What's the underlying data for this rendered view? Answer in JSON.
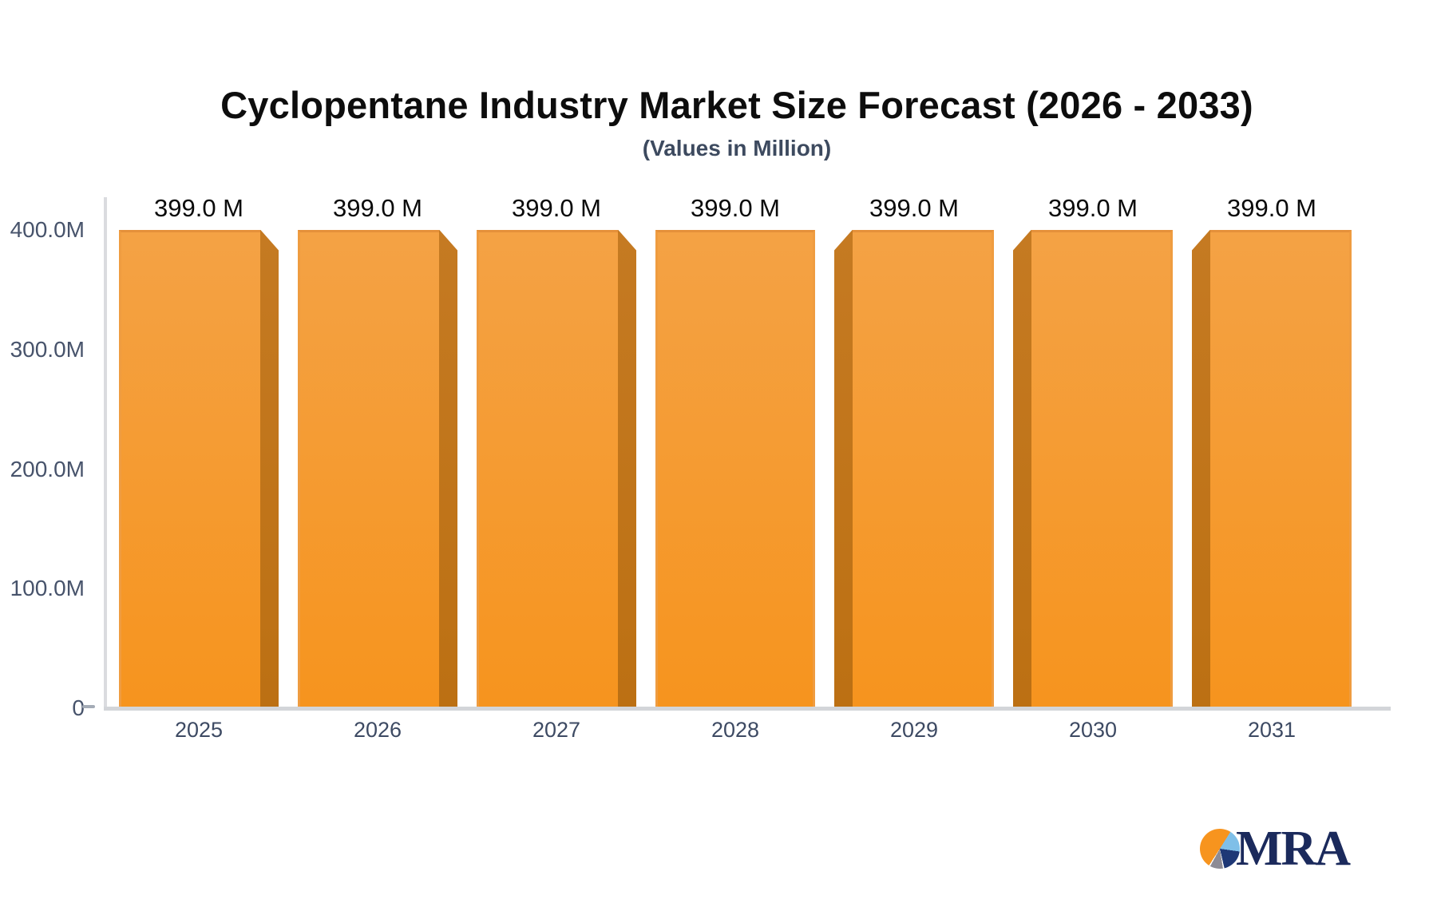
{
  "chart_data": {
    "type": "bar",
    "title": "Cyclopentane Industry Market Size Forecast (2026 - 2033)",
    "subtitle": "(Values in Million)",
    "categories": [
      "2025",
      "2026",
      "2027",
      "2028",
      "2029",
      "2030",
      "2031"
    ],
    "values": [
      399.0,
      399.0,
      399.0,
      399.0,
      399.0,
      399.0,
      399.0
    ],
    "bar_labels": [
      "399.0 M",
      "399.0 M",
      "399.0 M",
      "399.0 M",
      "399.0 M",
      "399.0 M",
      "399.0 M"
    ],
    "unit": "Million",
    "ylim": [
      0,
      400
    ],
    "y_ticks": [
      "400.0M",
      "300.0M",
      "200.0M",
      "100.0M",
      "0"
    ],
    "xlabel": "",
    "ylabel": "",
    "grid": "off",
    "legend": "none",
    "colors": {
      "bar_face_top": "#F4A245",
      "bar_face_bottom": "#F6941E",
      "bar_side_3d": "#BF7317",
      "axis_line": "#D3D5D9",
      "tick_label": "#47536B",
      "category_label": "#3D4A63",
      "value_label": "#0A0A0A"
    }
  },
  "logo": {
    "text": "MRA",
    "text_color": "#1B2A5C",
    "pie_icon_colors": {
      "orange": "#F7941E",
      "light_blue": "#7FBFE8",
      "navy": "#1E3876",
      "gray": "#8D8B95"
    }
  }
}
